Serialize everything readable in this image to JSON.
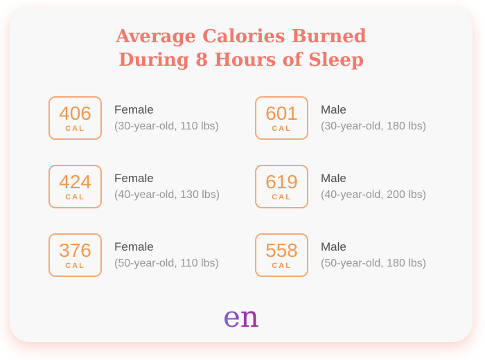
{
  "title": {
    "line1": "Average Calories Burned",
    "line2": "During 8 Hours of Sleep"
  },
  "entries": [
    {
      "value": "406",
      "unit": "CAL",
      "sex": "Female",
      "detail": "(30-year-old, 110 lbs)"
    },
    {
      "value": "601",
      "unit": "CAL",
      "sex": "Male",
      "detail": "(30-year-old, 180 lbs)"
    },
    {
      "value": "424",
      "unit": "CAL",
      "sex": "Female",
      "detail": "(40-year-old, 130 lbs)"
    },
    {
      "value": "619",
      "unit": "CAL",
      "sex": "Male",
      "detail": "(40-year-old, 200 lbs)"
    },
    {
      "value": "376",
      "unit": "CAL",
      "sex": "Female",
      "detail": "(50-year-old, 110 lbs)"
    },
    {
      "value": "558",
      "unit": "CAL",
      "sex": "Male",
      "detail": "(50-year-old, 180 lbs)"
    }
  ],
  "logo": {
    "text": "en"
  },
  "colors": {
    "title_coral": "#f4786b",
    "badge_orange": "#f2984e",
    "badge_border": "#f6a878",
    "card_background": "#f8f8f9",
    "glow_shadow": "#f88c74",
    "label_dark": "#4c4c4c",
    "label_gray": "#969696",
    "logo_gradient_start": "#7a68cf",
    "logo_gradient_end": "#b02a8f"
  },
  "chart_data": {
    "type": "table",
    "title": "Average Calories Burned During 8 Hours of Sleep",
    "unit": "CAL",
    "columns": [
      "calories",
      "sex",
      "age_years",
      "weight_lbs"
    ],
    "rows": [
      [
        406,
        "Female",
        30,
        110
      ],
      [
        601,
        "Male",
        30,
        180
      ],
      [
        424,
        "Female",
        40,
        130
      ],
      [
        619,
        "Male",
        40,
        200
      ],
      [
        376,
        "Female",
        50,
        110
      ],
      [
        558,
        "Male",
        50,
        180
      ]
    ],
    "legend_position": "none",
    "grid": false
  }
}
